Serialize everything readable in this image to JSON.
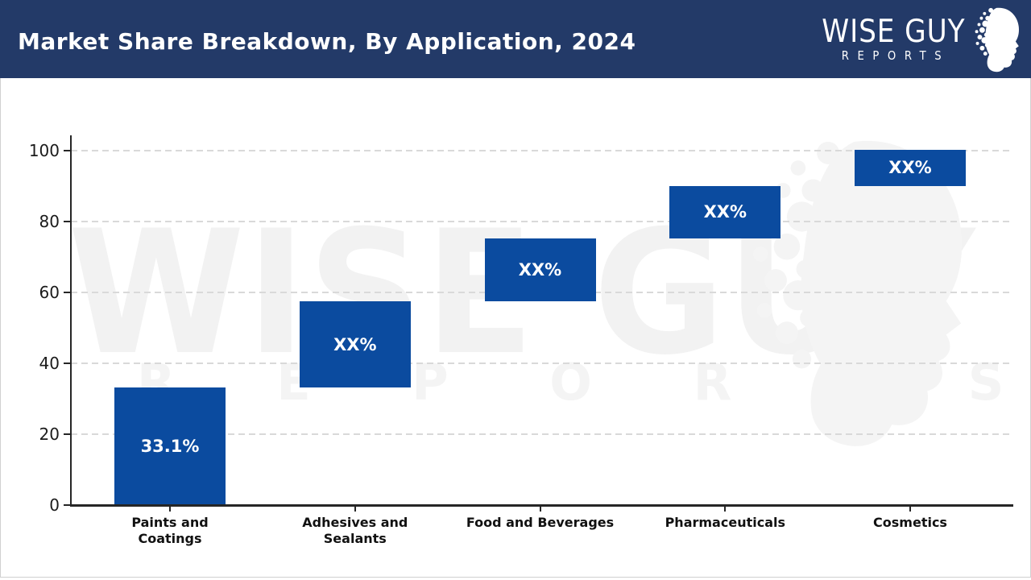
{
  "header": {
    "title": "Market Share Breakdown, By Application, 2024",
    "logo": {
      "wise_guy": "WISE GUY",
      "reports": "REPORTS"
    }
  },
  "watermark": {
    "wise_guy": "WISE GUY",
    "reports": "R E P O R T S"
  },
  "colors": {
    "header_bg": "#233a68",
    "bar": "#0b4b9f",
    "bar_text": "#ffffff",
    "grid": "#d9d9d9",
    "axis": "#262626"
  },
  "chart_data": {
    "type": "bar",
    "subtype": "waterfall",
    "title": "Market Share Breakdown, By Application, 2024",
    "categories": [
      "Paints and Coatings",
      "Adhesives and Sealants",
      "Food and Beverages",
      "Pharmaceuticals",
      "Cosmetics"
    ],
    "categories_display": [
      [
        "Paints and",
        "Coatings"
      ],
      [
        "Adhesives and",
        "Sealants"
      ],
      [
        "Food and Beverages"
      ],
      [
        "Pharmaceuticals"
      ],
      [
        "Cosmetics"
      ]
    ],
    "bar_labels": [
      "33.1%",
      "XX%",
      "XX%",
      "XX%",
      "XX%"
    ],
    "segments": [
      {
        "start": 0,
        "end": 33.1
      },
      {
        "start": 33.1,
        "end": 57.4
      },
      {
        "start": 57.4,
        "end": 75.2
      },
      {
        "start": 75.2,
        "end": 90.1
      },
      {
        "start": 90.1,
        "end": 100.2
      }
    ],
    "xlabel": "",
    "ylabel": "",
    "yticks": [
      0,
      20,
      40,
      60,
      80,
      100
    ],
    "ylim": [
      0,
      104
    ],
    "grid": true,
    "legend": "none"
  }
}
